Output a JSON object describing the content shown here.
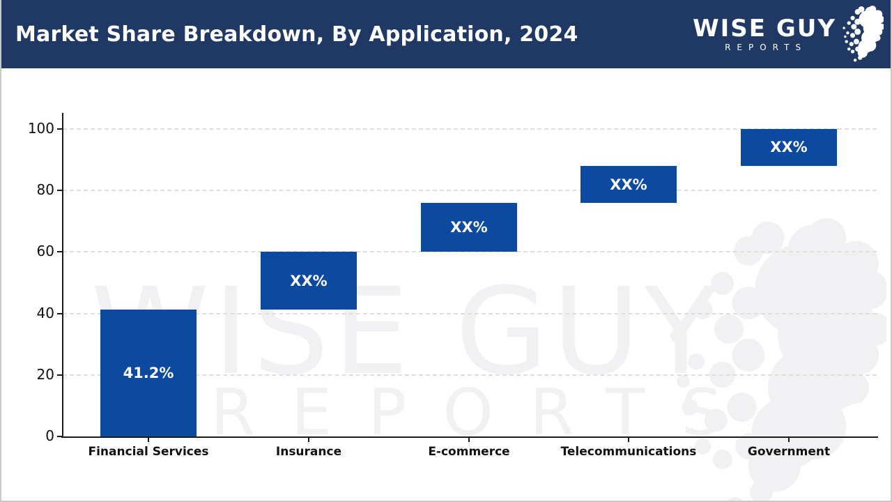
{
  "header": {
    "title": "Market Share Breakdown, By Application, 2024",
    "bg_color": "#1f3864",
    "logo": {
      "line1": "WISE GUY",
      "line2": "REPORTS"
    }
  },
  "watermark": {
    "line1": "WISE GUY",
    "line2": "REPORTS"
  },
  "chart_data": {
    "type": "bar",
    "subtype": "waterfall-stacked-breakdown",
    "title": "Market Share Breakdown, By Application, 2024",
    "categories": [
      "Financial Services",
      "Insurance",
      "E-commerce",
      "Telecommunications",
      "Government"
    ],
    "segments": [
      {
        "category": "Financial Services",
        "start": 0,
        "end": 41.2,
        "label": "41.2%"
      },
      {
        "category": "Insurance",
        "start": 41.2,
        "end": 60.1,
        "label": "XX%"
      },
      {
        "category": "E-commerce",
        "start": 60.1,
        "end": 75.9,
        "label": "XX%"
      },
      {
        "category": "Telecommunications",
        "start": 75.9,
        "end": 88.0,
        "label": "XX%"
      },
      {
        "category": "Government",
        "start": 88.0,
        "end": 100.0,
        "label": "XX%"
      }
    ],
    "y_ticks": [
      0,
      20,
      40,
      60,
      80,
      100
    ],
    "ylim": [
      0,
      100
    ],
    "xlabel": "",
    "ylabel": "",
    "grid": "horizontal-dashed",
    "legend": "none",
    "colors": {
      "bar": "#0b4a9e",
      "grid": "#dedede",
      "axis": "#1a1a1a",
      "header_bg": "#1f3864",
      "bar_label_text": "#ffffff"
    }
  }
}
